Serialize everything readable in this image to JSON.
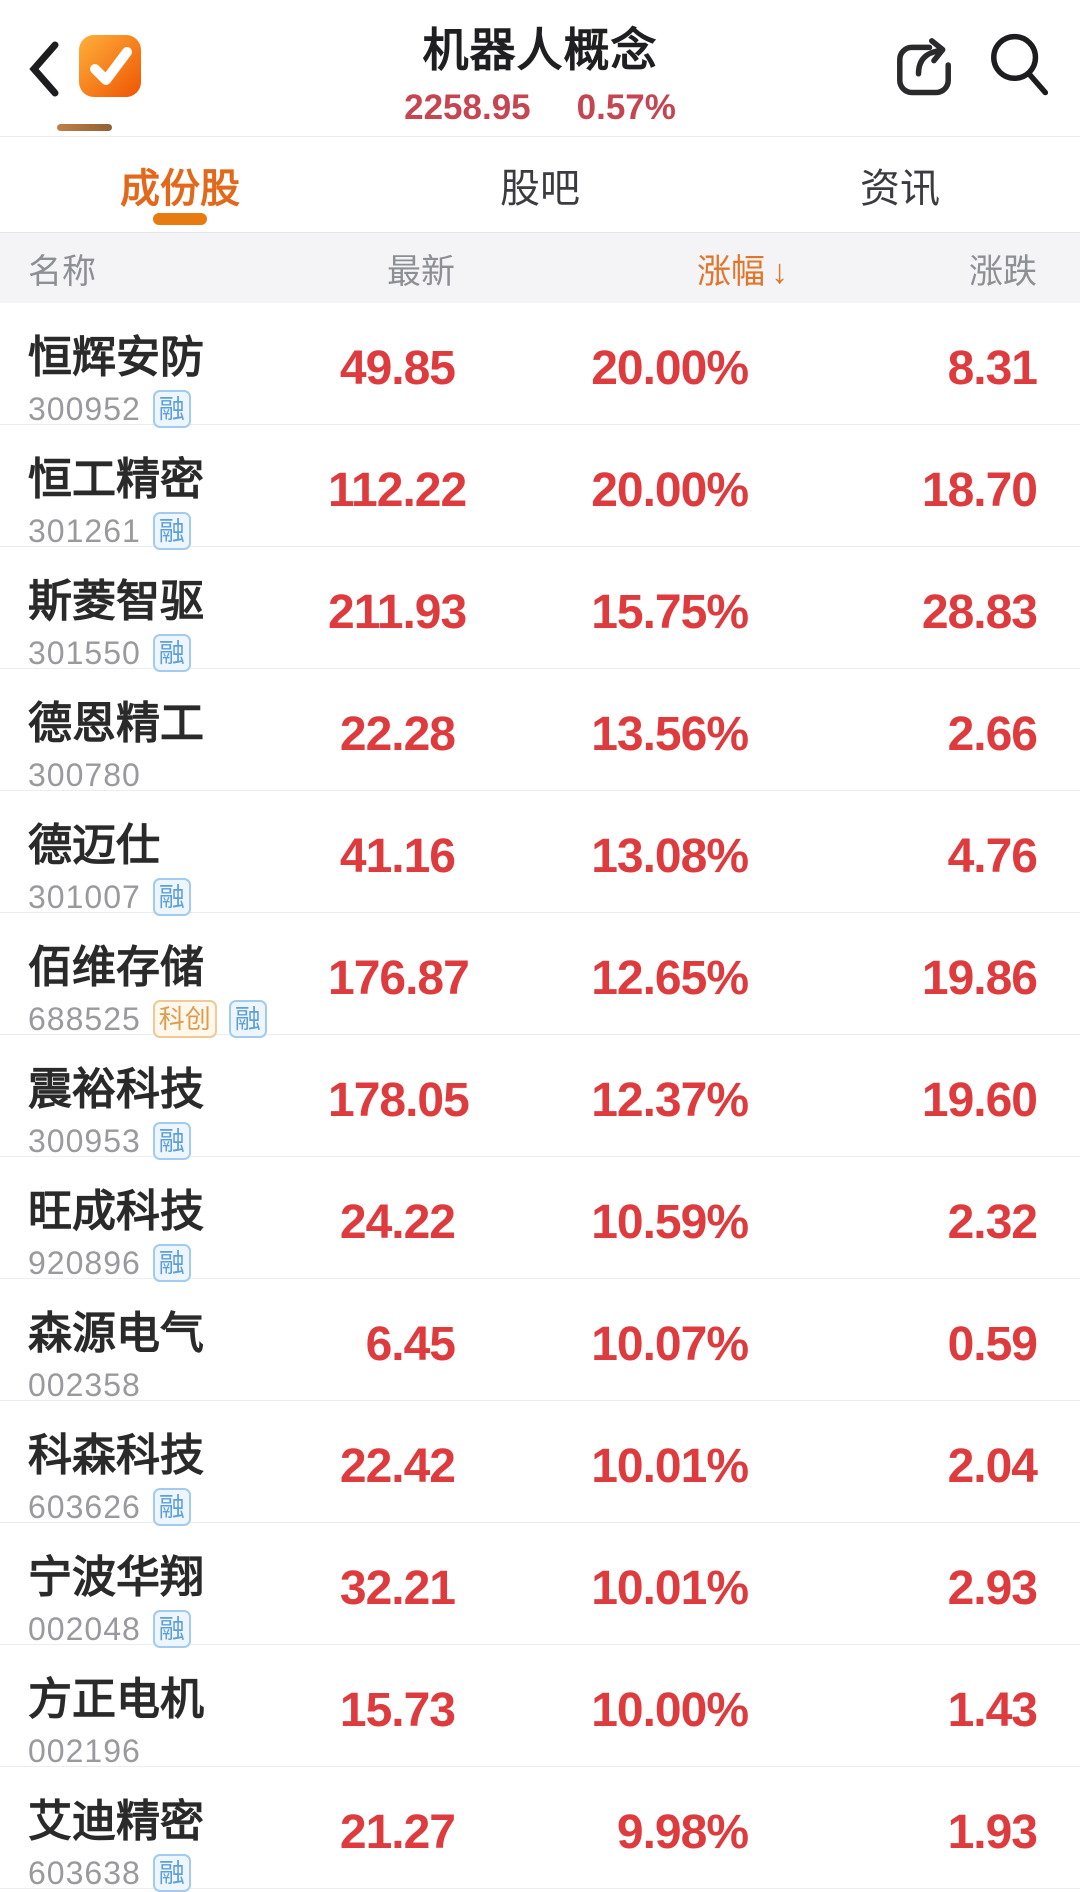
{
  "header": {
    "title": "机器人概念",
    "index_value": "2258.95",
    "index_change_pct": "0.57%"
  },
  "tabs": [
    {
      "label": "成份股",
      "active": true
    },
    {
      "label": "股吧",
      "active": false
    },
    {
      "label": "资讯",
      "active": false
    }
  ],
  "table": {
    "columns": [
      {
        "label": "名称"
      },
      {
        "label": "最新"
      },
      {
        "label": "涨幅",
        "sorted": true,
        "sort_arrow": "↓"
      },
      {
        "label": "涨跌"
      }
    ],
    "rows": [
      {
        "name": "恒辉安防",
        "code": "300952",
        "badges": [
          {
            "label": "融",
            "style": "blue"
          }
        ],
        "price": "49.85",
        "change_pct": "20.00%",
        "change": "8.31"
      },
      {
        "name": "恒工精密",
        "code": "301261",
        "badges": [
          {
            "label": "融",
            "style": "blue"
          }
        ],
        "price": "112.22",
        "change_pct": "20.00%",
        "change": "18.70"
      },
      {
        "name": "斯菱智驱",
        "code": "301550",
        "badges": [
          {
            "label": "融",
            "style": "blue"
          }
        ],
        "price": "211.93",
        "change_pct": "15.75%",
        "change": "28.83"
      },
      {
        "name": "德恩精工",
        "code": "300780",
        "badges": [],
        "price": "22.28",
        "change_pct": "13.56%",
        "change": "2.66"
      },
      {
        "name": "德迈仕",
        "code": "301007",
        "badges": [
          {
            "label": "融",
            "style": "blue"
          }
        ],
        "price": "41.16",
        "change_pct": "13.08%",
        "change": "4.76"
      },
      {
        "name": "佰维存储",
        "code": "688525",
        "badges": [
          {
            "label": "科创",
            "style": "orange"
          },
          {
            "label": "融",
            "style": "blue"
          }
        ],
        "price": "176.87",
        "change_pct": "12.65%",
        "change": "19.86"
      },
      {
        "name": "震裕科技",
        "code": "300953",
        "badges": [
          {
            "label": "融",
            "style": "blue"
          }
        ],
        "price": "178.05",
        "change_pct": "12.37%",
        "change": "19.60"
      },
      {
        "name": "旺成科技",
        "code": "920896",
        "badges": [
          {
            "label": "融",
            "style": "blue"
          }
        ],
        "price": "24.22",
        "change_pct": "10.59%",
        "change": "2.32"
      },
      {
        "name": "森源电气",
        "code": "002358",
        "badges": [],
        "price": "6.45",
        "change_pct": "10.07%",
        "change": "0.59"
      },
      {
        "name": "科森科技",
        "code": "603626",
        "badges": [
          {
            "label": "融",
            "style": "blue"
          }
        ],
        "price": "22.42",
        "change_pct": "10.01%",
        "change": "2.04"
      },
      {
        "name": "宁波华翔",
        "code": "002048",
        "badges": [
          {
            "label": "融",
            "style": "blue"
          }
        ],
        "price": "32.21",
        "change_pct": "10.01%",
        "change": "2.93"
      },
      {
        "name": "方正电机",
        "code": "002196",
        "badges": [],
        "price": "15.73",
        "change_pct": "10.00%",
        "change": "1.43"
      },
      {
        "name": "艾迪精密",
        "code": "603638",
        "badges": [
          {
            "label": "融",
            "style": "blue"
          }
        ],
        "price": "21.27",
        "change_pct": "9.98%",
        "change": "1.93"
      }
    ]
  },
  "colors": {
    "accent_orange": "#e2691c",
    "sort_orange": "#e0762c",
    "number_red": "#dd3b3e",
    "index_red": "#c54551",
    "name_dark": "#2a2a2a",
    "muted_gray": "#8d8f94",
    "thead_bg": "#f4f4f6",
    "badge_blue": "#5f9fd8",
    "badge_orange": "#df9c4e"
  }
}
